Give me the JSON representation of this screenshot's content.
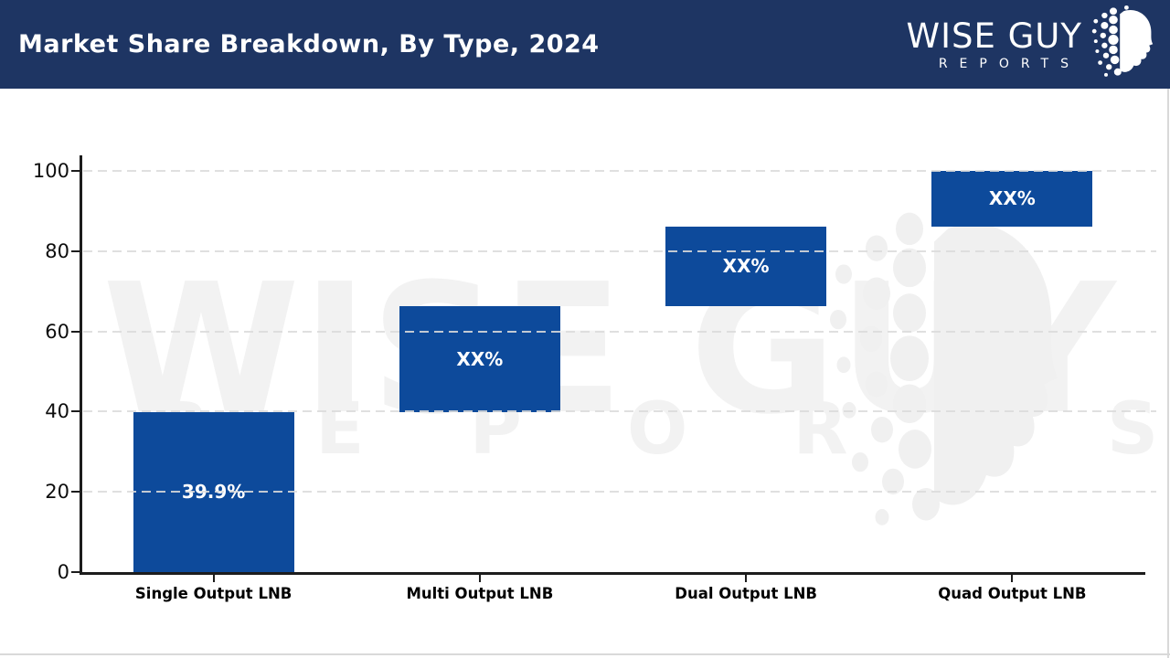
{
  "header": {
    "title": "Market Share Breakdown, By Type, 2024",
    "logo": {
      "line1": "WISE GUY",
      "line2": "REPORTS"
    }
  },
  "watermark": {
    "line1": "WISE GUY",
    "line2": "R E P O R T S"
  },
  "chart_data": {
    "type": "bar",
    "subtype": "floating-waterfall",
    "title": "Market Share Breakdown, By Type, 2024",
    "categories": [
      "Single Output LNB",
      "Multi Output LNB",
      "Dual Output LNB",
      "Quad Output LNB"
    ],
    "segments": [
      {
        "label": "39.9%",
        "start": 0,
        "end": 39.9
      },
      {
        "label": "XX%",
        "start": 39.9,
        "end": 66.3
      },
      {
        "label": "XX%",
        "start": 66.3,
        "end": 86.2
      },
      {
        "label": "XX%",
        "end": 100,
        "start": 86.2
      }
    ],
    "ylim": [
      0,
      100
    ],
    "yticks": [
      0,
      20,
      40,
      60,
      80,
      100
    ],
    "grid": "dashed horizontal, drawn above bars",
    "legend": "none",
    "colors": {
      "bar": "#0D4A9B",
      "bar_label": "#FFFFFF",
      "axis": "#1C1C1C",
      "header_bg": "#1E3563",
      "watermark": "#F2F2F2"
    }
  }
}
